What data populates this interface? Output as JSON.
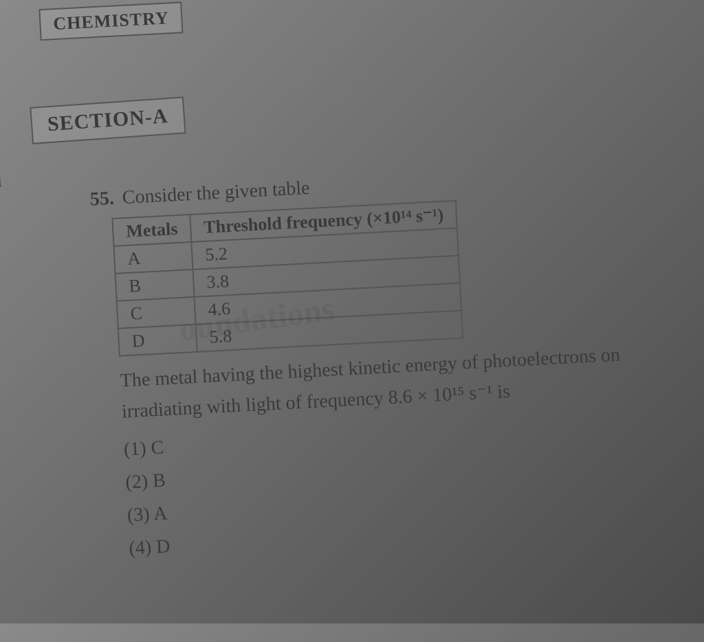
{
  "header": {
    "subject_label": "CHEMISTRY",
    "section_label": "SECTION-A"
  },
  "left_marker": "ed",
  "question": {
    "number": "55.",
    "intro": "Consider the given table",
    "table": {
      "columns": [
        "Metals",
        "Threshold frequency (×10¹⁴ s⁻¹)"
      ],
      "rows": [
        [
          "A",
          "5.2"
        ],
        [
          "B",
          "3.8"
        ],
        [
          "C",
          "4.6"
        ],
        [
          "D",
          "5.8"
        ]
      ]
    },
    "body_line1": "The metal having the highest kinetic energy of",
    "body_line2_prefix": "photoelectrons on irradiating with light of frequency 8.6 ×",
    "body_line3": "10¹⁵ s⁻¹ is",
    "options": [
      {
        "label": "(1)",
        "text": "C"
      },
      {
        "label": "(2)",
        "text": "B"
      },
      {
        "label": "(3)",
        "text": "A"
      },
      {
        "label": "(4)",
        "text": "D"
      }
    ]
  },
  "styling": {
    "background_gradient": [
      "#8a8a8a",
      "#6a6a6a",
      "#4a4a4a"
    ],
    "text_color": "#3a3a3a",
    "border_color": "#555555",
    "font_family": "Georgia, Times New Roman, serif",
    "rotation_deg": -3,
    "label_fontsize": 26,
    "question_fontsize": 28,
    "table_fontsize": 26
  }
}
